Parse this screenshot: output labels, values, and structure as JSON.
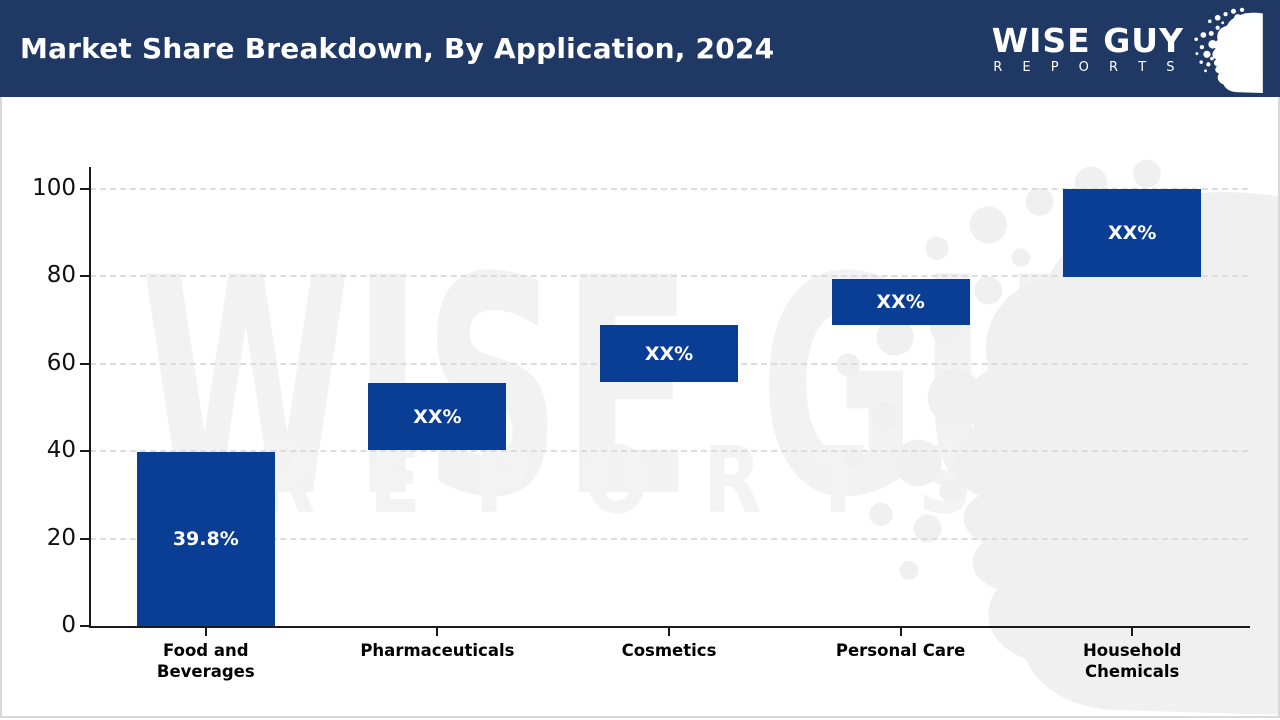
{
  "header": {
    "title": "Market Share Breakdown, By Application, 2024",
    "logo": {
      "line1": "WISE GUY",
      "line2": "R E P O R T S"
    }
  },
  "watermark": {
    "line1": "WISE GUY",
    "line2": "REPORTS"
  },
  "chart_data": {
    "type": "bar",
    "subtype": "waterfall",
    "title": "Market Share Breakdown, By Application, 2024",
    "categories": [
      "Food and Beverages",
      "Pharmaceuticals",
      "Cosmetics",
      "Personal Care",
      "Household Chemicals"
    ],
    "segments": [
      {
        "category": "Food and Beverages",
        "start": 0,
        "end": 39.8,
        "label": "39.8%"
      },
      {
        "category": "Pharmaceuticals",
        "start": 40.2,
        "end": 55.5,
        "label": "XX%"
      },
      {
        "category": "Cosmetics",
        "start": 55.7,
        "end": 68.9,
        "label": "XX%"
      },
      {
        "category": "Personal Care",
        "start": 68.9,
        "end": 79.3,
        "label": "XX%"
      },
      {
        "category": "Household Chemicals",
        "start": 79.8,
        "end": 100,
        "label": "XX%"
      }
    ],
    "yticks": [
      0,
      20,
      40,
      60,
      80,
      100
    ],
    "ylim": [
      0,
      105
    ],
    "xlabel": "",
    "ylabel": "",
    "grid": "horizontal-dashed",
    "legend": "none"
  },
  "colors": {
    "header_bg": "#1f3864",
    "bar": "#0a3d94",
    "bar_label": "#ffffff",
    "grid": "#dcdcdc",
    "axis": "#1a1a1a",
    "watermark": "#f2f2f2",
    "border": "#d9d9d9"
  }
}
